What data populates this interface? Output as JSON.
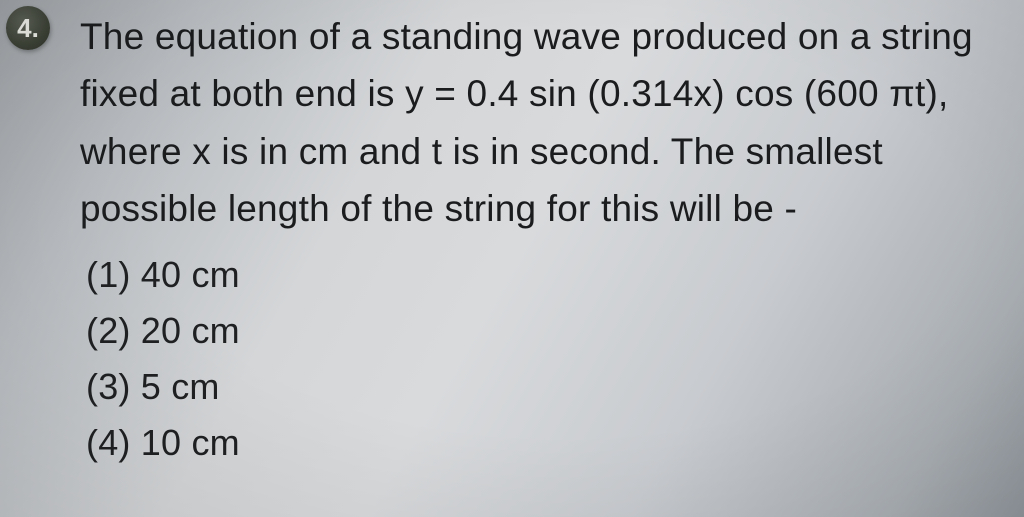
{
  "question": {
    "number": "4.",
    "text": "The equation of a standing wave produced on a string fixed at both end is y = 0.4 sin (0.314x) cos (600 πt), where x is in cm and t is in second. The smallest possible length of the string for this will be -"
  },
  "options": [
    {
      "label": "(1) 40 cm"
    },
    {
      "label": "(2) 20 cm"
    },
    {
      "label": "(3) 5 cm"
    },
    {
      "label": "(4) 10 cm"
    }
  ],
  "style": {
    "text_color": "#1a1c1e",
    "badge_bg": "#3f4439",
    "badge_text": "#e7e8e2",
    "page_bg_left": "#9ca0a4",
    "page_bg_mid": "#d8dadc",
    "page_bg_right": "#8e949a",
    "question_fontsize": 37,
    "option_fontsize": 36
  }
}
